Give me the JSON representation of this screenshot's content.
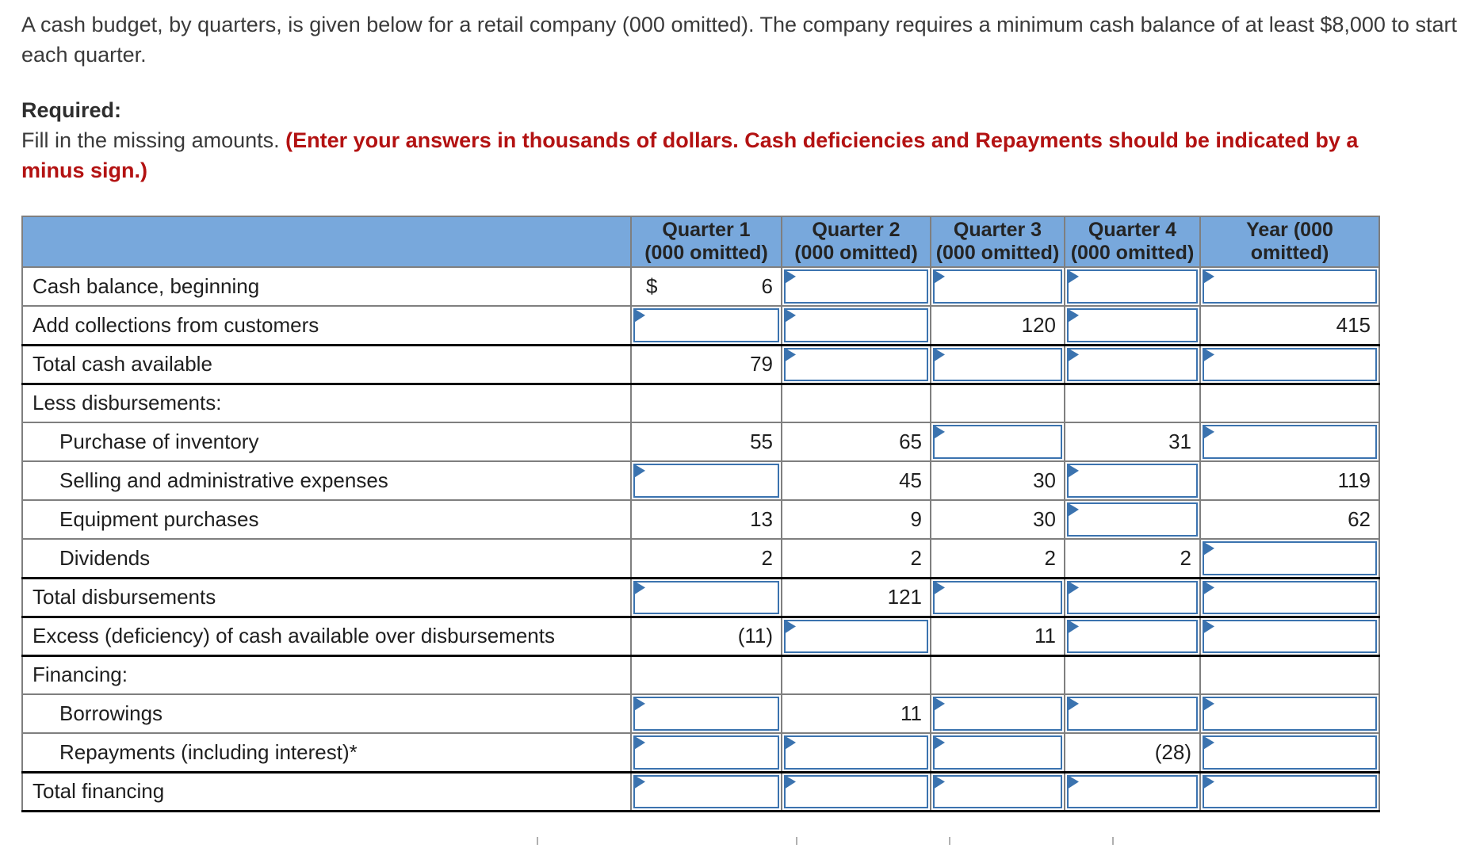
{
  "colors": {
    "header_bg": "#78a8dc",
    "input_border": "#3b73af",
    "rule_gray": "#7f7f7f",
    "emphasis_red": "#b31212"
  },
  "intro_text": "A cash budget, by quarters, is given below for a retail company (000 omitted). The company requires a minimum cash balance of at least $8,000 to start each quarter.",
  "required_label": "Required:",
  "instruction": {
    "normal": "Fill in the missing amounts. ",
    "emphasis": "(Enter your answers in thousands of dollars. Cash deficiencies and Repayments should be indicated by a minus sign.)"
  },
  "table": {
    "columns": [
      {
        "key": "q1",
        "line1": "Quarter 1",
        "line2": "(000 omitted)"
      },
      {
        "key": "q2",
        "line1": "Quarter 2",
        "line2": "(000 omitted)"
      },
      {
        "key": "q3",
        "line1": "Quarter 3",
        "line2": "(000 omitted)"
      },
      {
        "key": "q4",
        "line1": "Quarter 4",
        "line2": "(000 omitted)"
      },
      {
        "key": "year",
        "line1": "Year (000",
        "line2": "omitted)"
      }
    ],
    "rows": [
      {
        "label": "Cash balance, beginning",
        "indent": false,
        "rule_top": false,
        "rule_bottom": false,
        "cells": [
          {
            "t": "s",
            "v": "6",
            "p": "$"
          },
          {
            "t": "i"
          },
          {
            "t": "i"
          },
          {
            "t": "i"
          },
          {
            "t": "i"
          }
        ]
      },
      {
        "label": "Add collections from customers",
        "indent": false,
        "rule_top": false,
        "rule_bottom": false,
        "cells": [
          {
            "t": "i"
          },
          {
            "t": "i"
          },
          {
            "t": "s",
            "v": "120"
          },
          {
            "t": "i"
          },
          {
            "t": "s",
            "v": "415"
          }
        ]
      },
      {
        "label": "Total cash available",
        "indent": false,
        "rule_top": true,
        "rule_bottom": true,
        "cells": [
          {
            "t": "s",
            "v": "79"
          },
          {
            "t": "i"
          },
          {
            "t": "i"
          },
          {
            "t": "i"
          },
          {
            "t": "i"
          }
        ]
      },
      {
        "label": "Less disbursements:",
        "indent": false,
        "rule_top": false,
        "rule_bottom": false,
        "cells": [
          {
            "t": "b"
          },
          {
            "t": "b"
          },
          {
            "t": "b"
          },
          {
            "t": "b"
          },
          {
            "t": "b"
          }
        ]
      },
      {
        "label": "Purchase of inventory",
        "indent": true,
        "rule_top": false,
        "rule_bottom": false,
        "cells": [
          {
            "t": "s",
            "v": "55"
          },
          {
            "t": "s",
            "v": "65"
          },
          {
            "t": "i"
          },
          {
            "t": "s",
            "v": "31"
          },
          {
            "t": "i"
          }
        ]
      },
      {
        "label": "Selling and administrative expenses",
        "indent": true,
        "rule_top": false,
        "rule_bottom": false,
        "cells": [
          {
            "t": "i"
          },
          {
            "t": "s",
            "v": "45"
          },
          {
            "t": "s",
            "v": "30"
          },
          {
            "t": "i"
          },
          {
            "t": "s",
            "v": "119"
          }
        ]
      },
      {
        "label": "Equipment purchases",
        "indent": true,
        "rule_top": false,
        "rule_bottom": false,
        "cells": [
          {
            "t": "s",
            "v": "13"
          },
          {
            "t": "s",
            "v": "9"
          },
          {
            "t": "s",
            "v": "30"
          },
          {
            "t": "i"
          },
          {
            "t": "s",
            "v": "62"
          }
        ]
      },
      {
        "label": "Dividends",
        "indent": true,
        "rule_top": false,
        "rule_bottom": false,
        "cells": [
          {
            "t": "s",
            "v": "2"
          },
          {
            "t": "s",
            "v": "2"
          },
          {
            "t": "s",
            "v": "2"
          },
          {
            "t": "s",
            "v": "2"
          },
          {
            "t": "i"
          }
        ]
      },
      {
        "label": "Total disbursements",
        "indent": false,
        "rule_top": true,
        "rule_bottom": true,
        "cells": [
          {
            "t": "i"
          },
          {
            "t": "s",
            "v": "121"
          },
          {
            "t": "i"
          },
          {
            "t": "i"
          },
          {
            "t": "i"
          }
        ]
      },
      {
        "label": "Excess (deficiency) of cash available over disbursements",
        "indent": false,
        "rule_top": false,
        "rule_bottom": true,
        "cells": [
          {
            "t": "s",
            "v": "(11)"
          },
          {
            "t": "i"
          },
          {
            "t": "s",
            "v": "11"
          },
          {
            "t": "i"
          },
          {
            "t": "i"
          }
        ]
      },
      {
        "label": "Financing:",
        "indent": false,
        "rule_top": false,
        "rule_bottom": false,
        "cells": [
          {
            "t": "b"
          },
          {
            "t": "b"
          },
          {
            "t": "b"
          },
          {
            "t": "b"
          },
          {
            "t": "b"
          }
        ]
      },
      {
        "label": "Borrowings",
        "indent": true,
        "rule_top": false,
        "rule_bottom": false,
        "cells": [
          {
            "t": "i"
          },
          {
            "t": "s",
            "v": "11"
          },
          {
            "t": "i"
          },
          {
            "t": "i"
          },
          {
            "t": "i"
          }
        ]
      },
      {
        "label": "Repayments (including interest)*",
        "indent": true,
        "rule_top": false,
        "rule_bottom": false,
        "cells": [
          {
            "t": "i"
          },
          {
            "t": "i"
          },
          {
            "t": "i"
          },
          {
            "t": "s",
            "v": "(28)"
          },
          {
            "t": "i"
          }
        ]
      },
      {
        "label": "Total financing",
        "indent": false,
        "rule_top": true,
        "rule_bottom": true,
        "cells": [
          {
            "t": "i"
          },
          {
            "t": "i"
          },
          {
            "t": "i"
          },
          {
            "t": "i"
          },
          {
            "t": "i"
          }
        ]
      }
    ]
  }
}
